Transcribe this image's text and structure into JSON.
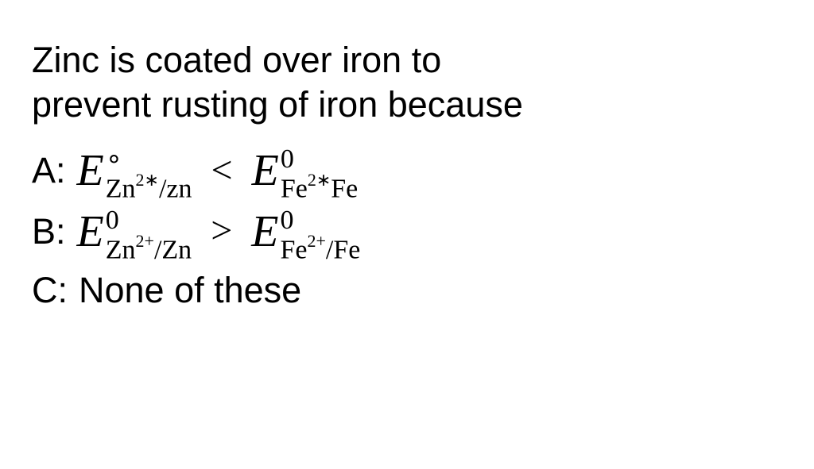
{
  "question": {
    "line1": "Zinc is coated over iron to",
    "line2": "prevent rusting of iron because"
  },
  "options": {
    "a": {
      "label": "A:",
      "left": {
        "E": "E",
        "sup": "∘",
        "sub_main": "Zn",
        "sub_charge": "2∗",
        "sub_sep": "/",
        "sub_tail": "zn"
      },
      "op": "<",
      "right": {
        "E": "E",
        "sup": "0",
        "sub_main": "Fe",
        "sub_charge": "2∗",
        "sub_sep": "",
        "sub_tail": "Fe"
      }
    },
    "b": {
      "label": "B:",
      "left": {
        "E": "E",
        "sup": "0",
        "sub_main": "Zn",
        "sub_charge": "2+",
        "sub_sep": "/",
        "sub_tail": "Zn"
      },
      "op": ">",
      "right": {
        "E": "E",
        "sup": "0",
        "sub_main": "Fe",
        "sub_charge": "2+",
        "sub_sep": "/",
        "sub_tail": "Fe"
      }
    },
    "c": {
      "label": "C:",
      "text": "None of these"
    }
  }
}
